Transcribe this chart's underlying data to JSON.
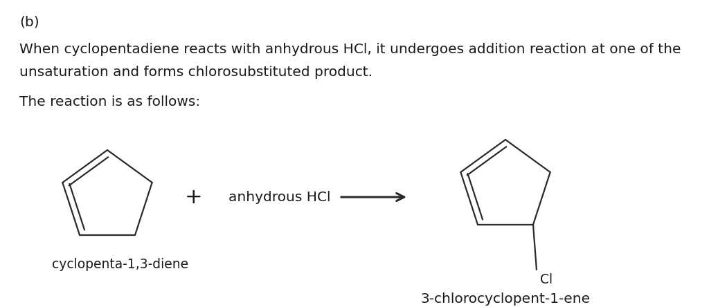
{
  "background_color": "#ffffff",
  "title_label": "(b)",
  "text_line1": "When cyclopentadiene reacts with anhydrous HCl, it undergoes addition reaction at one of the",
  "text_line2": "unsaturation and forms chlorosubstituted product.",
  "text_line3": "The reaction is as follows:",
  "reagent_label": "anhydrous HCl",
  "reactant_label": "cyclopenta-1,3-diene",
  "product_label": "3-chlorocyclopent-1-ene",
  "cl_label": "Cl",
  "plus_sign": "+",
  "text_color": "#1a1a1a",
  "line_color": "#2a2a2a",
  "font_size_text": 14.5,
  "font_size_label": 13.5,
  "font_size_title": 14.5,
  "font_size_plus": 22,
  "lw": 1.6
}
